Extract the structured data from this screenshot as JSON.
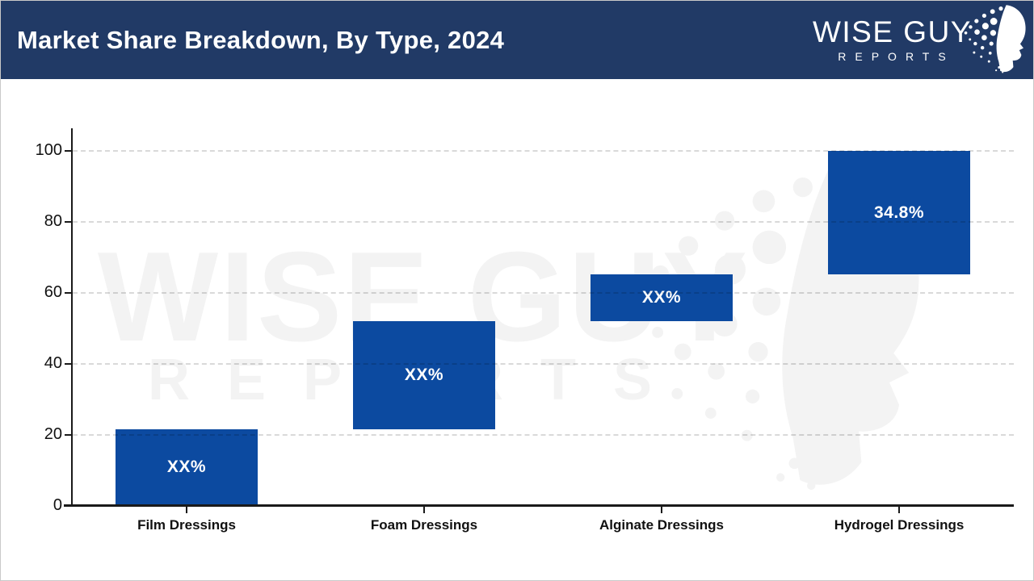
{
  "header": {
    "title": "Market Share Breakdown, By Type, 2024",
    "logo": {
      "name": "WISE GUY",
      "sub": "REPORTS"
    }
  },
  "watermark": {
    "line1": "WISE GUY",
    "line2": "REPORTS"
  },
  "colors": {
    "header_bg": "#213a66",
    "bar": "#0c4aa0",
    "bar_label": "#ffffff",
    "axis": "#1a1a1a",
    "gridline": "#d9d9d9",
    "watermark": "#f3f3f3",
    "tick_label": "#111111"
  },
  "chart_data": {
    "type": "bar",
    "variant": "stacked-waterfall-floating-bars",
    "title": "Market Share Breakdown, By Type, 2024",
    "categories": [
      "Film Dressings",
      "Foam Dressings",
      "Alginate Dressings",
      "Hydrogel Dressings"
    ],
    "segments": [
      {
        "category": "Film Dressings",
        "start": 0,
        "end": 21.7,
        "share_pct": 21.7,
        "label": "XX%"
      },
      {
        "category": "Foam Dressings",
        "start": 21.7,
        "end": 52.1,
        "share_pct": 30.4,
        "label": "XX%"
      },
      {
        "category": "Alginate Dressings",
        "start": 52.1,
        "end": 65.2,
        "share_pct": 13.1,
        "label": "XX%"
      },
      {
        "category": "Hydrogel Dressings",
        "start": 65.2,
        "end": 100,
        "share_pct": 34.8,
        "label": "34.8%"
      }
    ],
    "xlabel": "",
    "ylabel": "",
    "ylim": [
      0,
      105
    ],
    "yticks": [
      0,
      20,
      40,
      60,
      80,
      100
    ],
    "grid": "horizontal-dashed",
    "legend": "none"
  }
}
